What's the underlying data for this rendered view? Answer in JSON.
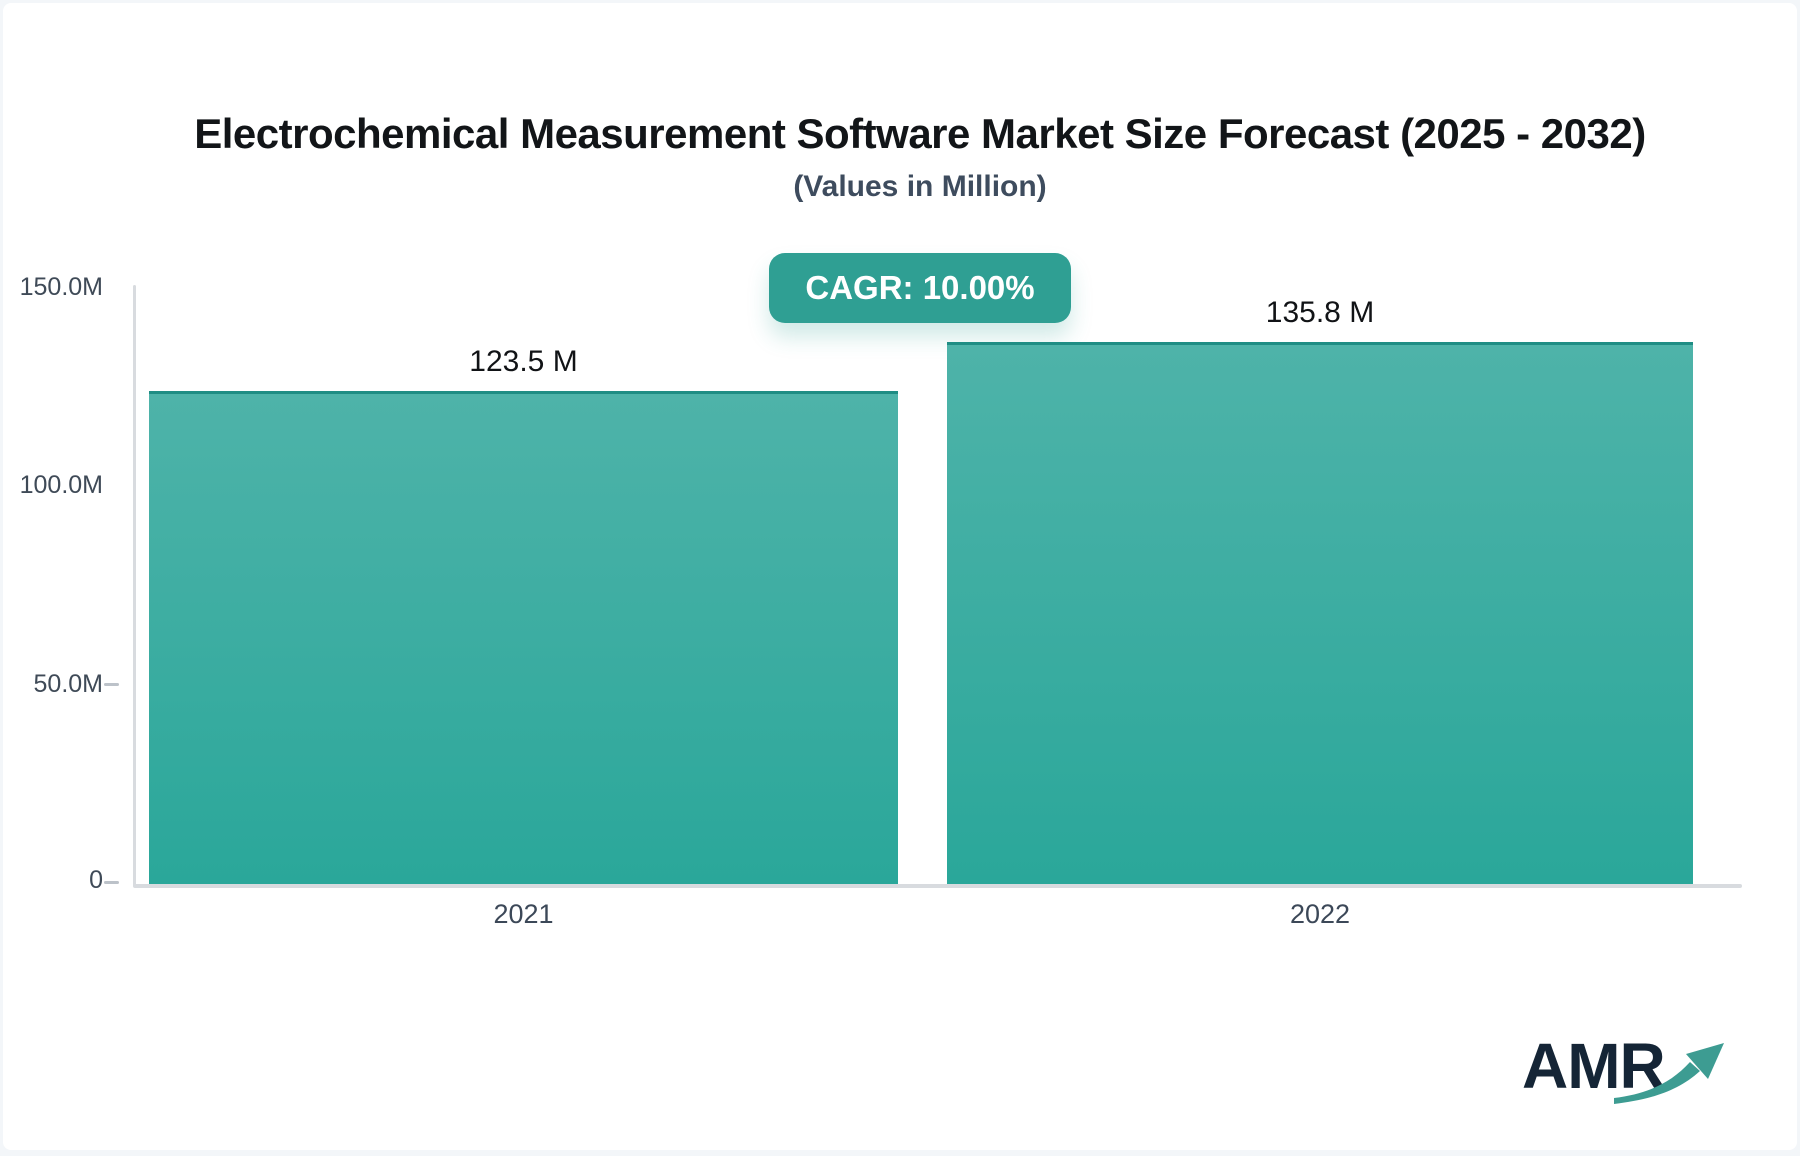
{
  "header": {
    "title": "Electrochemical Measurement Software Market Size Forecast (2025 - 2032)",
    "subtitle": "(Values in Million)"
  },
  "badge": {
    "label": "CAGR: 10.00%",
    "background": "#2f9f93",
    "text_color": "#ffffff"
  },
  "chart_data": {
    "type": "bar",
    "title": "Electrochemical Measurement Software Market Size Forecast (2025 - 2032)",
    "subtitle": "(Values in Million)",
    "unit": "Million",
    "cagr_percent": "10.00%",
    "categories": [
      "2021",
      "2022"
    ],
    "values": [
      123.5,
      135.8
    ],
    "value_labels": [
      "123.5 M",
      "135.8 M"
    ],
    "ylim": [
      0,
      150
    ],
    "ytick_labels": [
      "150.0M",
      "100.0M",
      "50.0M",
      "0"
    ],
    "grid": false,
    "legend": false,
    "bar_color_top": "#4eb3a9",
    "bar_color_bottom": "#2aa79a",
    "bar_border_top_color": "#1f8d84",
    "axis_color": "#d8dbdf"
  },
  "logo": {
    "text": "AMR",
    "text_color": "#152536",
    "arrow_color": "#3d9c92"
  }
}
